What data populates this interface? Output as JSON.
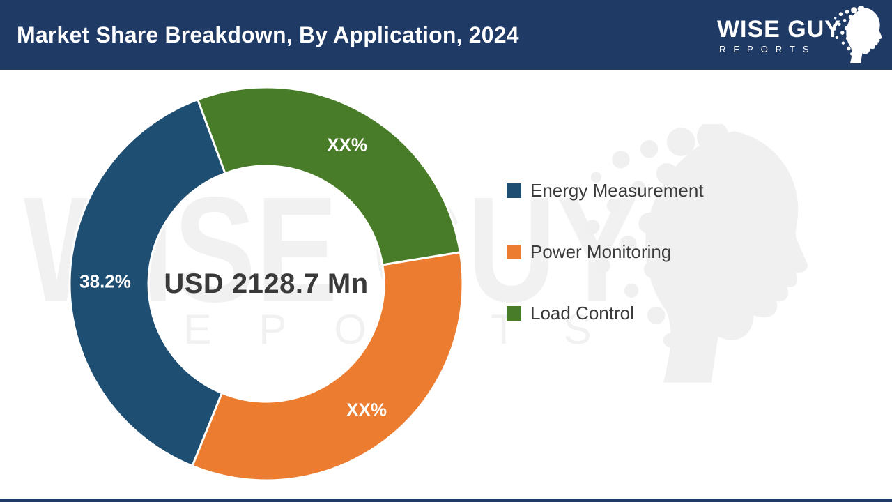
{
  "header": {
    "title": "Market Share Breakdown, By Application, 2024",
    "logo": {
      "line1": "WISE GUY",
      "line2": "REPORTS"
    }
  },
  "watermark": {
    "line1": "WISE GUY",
    "line2": "REPORTS"
  },
  "chart_data": {
    "type": "pie",
    "subtype": "donut",
    "title": "Market Share Breakdown, By Application, 2024",
    "center_label": "USD 2128.7 Mn",
    "start_angle_deg": 110.4,
    "direction": "counterclockwise",
    "inner_radius_ratio": 0.6,
    "segments": [
      {
        "name": "Energy Measurement",
        "value_pct": 38.2,
        "label": "38.2%",
        "color": "#1F4E73"
      },
      {
        "name": "Power Monitoring",
        "value_pct": 33.7,
        "label": "XX%",
        "color": "#EC7D30"
      },
      {
        "name": "Load Control",
        "value_pct": 28.1,
        "label": "XX%",
        "color": "#497C28"
      }
    ],
    "legend_position": "right"
  },
  "colors": {
    "header_bg": "#203A66",
    "footer_bg": "#203A66",
    "canvas_bg": "#FFFFFF",
    "text": "#3A3A3A",
    "watermark": "#F1F1F1",
    "segment_divider": "#FFFFFF"
  }
}
